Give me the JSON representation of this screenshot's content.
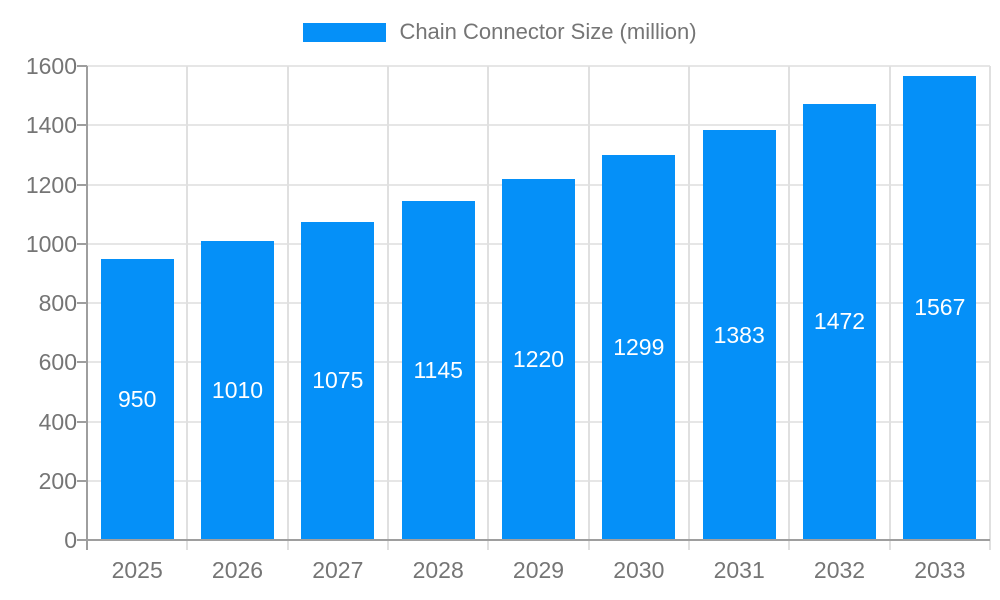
{
  "chart": {
    "background": "#ffffff",
    "legend": {
      "label": "Chain Connector Size (million)",
      "swatch_color": "#0590f8",
      "position": "top-center"
    },
    "colors": {
      "bar": "#0590f8",
      "axis_line": "#9e9e9e",
      "gridline": "#e6e6e6",
      "v_gridline": "#e0e0e0",
      "axis_label": "#757575",
      "value_label": "#ffffff"
    }
  },
  "chart_data": {
    "type": "bar",
    "title": "Chain Connector Size (million)",
    "series_name": "Chain Connector Size (million)",
    "categories": [
      "2025",
      "2026",
      "2027",
      "2028",
      "2029",
      "2030",
      "2031",
      "2032",
      "2033"
    ],
    "values": [
      950,
      1010,
      1075,
      1145,
      1220,
      1299,
      1383,
      1472,
      1567
    ],
    "xlabel": "",
    "ylabel": "",
    "ylim": [
      0,
      1600
    ],
    "ytick_step": 200,
    "yticks": [
      0,
      200,
      400,
      600,
      800,
      1000,
      1200,
      1400,
      1600
    ],
    "grid": true,
    "legend_position": "top-center",
    "value_labels_position": "inside-center"
  }
}
